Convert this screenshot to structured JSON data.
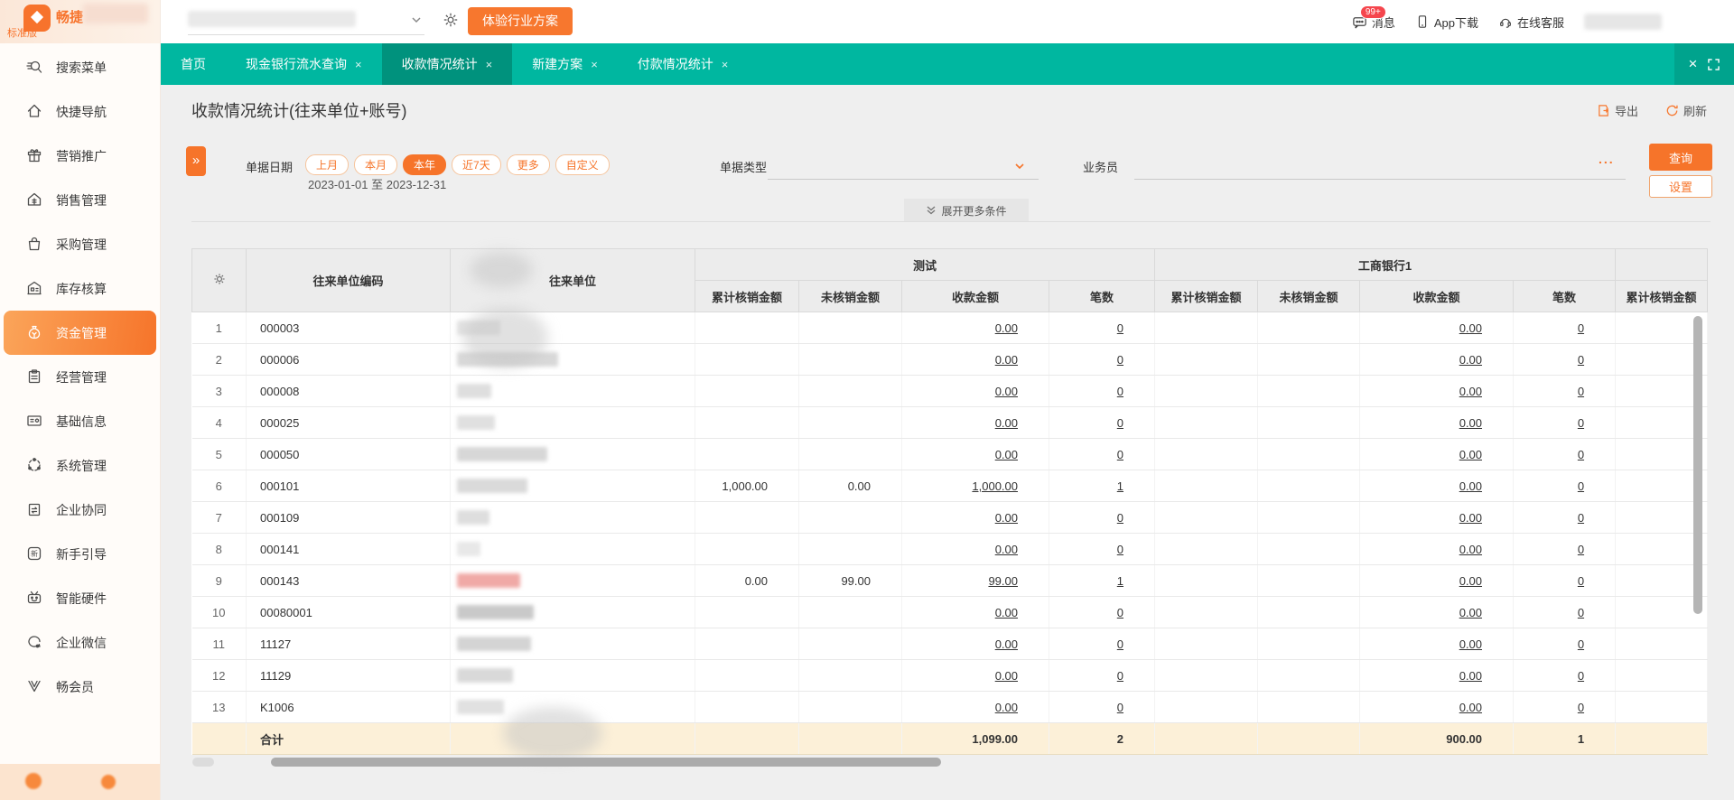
{
  "brand": {
    "name": "畅捷",
    "edition": "标准版"
  },
  "header": {
    "experience_btn": "体验行业方案",
    "messages_label": "消息",
    "messages_badge": "99+",
    "app_label": "App下载",
    "service_label": "在线客服"
  },
  "sidebar": {
    "items": [
      {
        "label": "搜索菜单",
        "icon": "search-icon",
        "active": false
      },
      {
        "label": "快捷导航",
        "icon": "home-icon",
        "active": false
      },
      {
        "label": "营销推广",
        "icon": "gift-icon",
        "active": false
      },
      {
        "label": "销售管理",
        "icon": "sales-icon",
        "active": false
      },
      {
        "label": "采购管理",
        "icon": "purchase-bag-icon",
        "active": false
      },
      {
        "label": "库存核算",
        "icon": "warehouse-icon",
        "active": false
      },
      {
        "label": "资金管理",
        "icon": "money-bag-icon",
        "active": true
      },
      {
        "label": "经营管理",
        "icon": "clipboard-icon",
        "active": false
      },
      {
        "label": "基础信息",
        "icon": "id-card-icon",
        "active": false
      },
      {
        "label": "系统管理",
        "icon": "system-icon",
        "active": false
      },
      {
        "label": "企业协同",
        "icon": "collaboration-icon",
        "active": false
      },
      {
        "label": "新手引导",
        "icon": "newbie-icon",
        "active": false
      },
      {
        "label": "智能硬件",
        "icon": "hardware-icon",
        "active": false
      },
      {
        "label": "企业微信",
        "icon": "wechat-icon",
        "active": false
      },
      {
        "label": "畅会员",
        "icon": "member-icon",
        "active": false
      }
    ]
  },
  "tabs": [
    {
      "label": "首页",
      "closable": false,
      "active": false
    },
    {
      "label": "现金银行流水查询",
      "closable": true,
      "active": false
    },
    {
      "label": "收款情况统计",
      "closable": true,
      "active": true
    },
    {
      "label": "新建方案",
      "closable": true,
      "active": false
    },
    {
      "label": "付款情况统计",
      "closable": true,
      "active": false
    }
  ],
  "page": {
    "title": "收款情况统计(往来单位+账号)",
    "export_label": "导出",
    "refresh_label": "刷新"
  },
  "filters": {
    "date_label": "单据日期",
    "date_pills": [
      {
        "label": "上月",
        "active": false
      },
      {
        "label": "本月",
        "active": false
      },
      {
        "label": "本年",
        "active": true
      },
      {
        "label": "近7天",
        "active": false
      },
      {
        "label": "更多",
        "active": false
      },
      {
        "label": "自定义",
        "active": false
      }
    ],
    "date_range": "2023-01-01 至 2023-12-31",
    "doc_type_label": "单据类型",
    "salesman_label": "业务员",
    "more_dots": "...",
    "query_btn": "查询",
    "settings_btn": "设置",
    "expand_more": "展开更多条件"
  },
  "table": {
    "col_code": "往来单位编码",
    "col_partner": "往来单位",
    "group1": "测试",
    "group2": "工商银行1",
    "group3": "",
    "sub_cols": [
      "累计核销金额",
      "未核销金额",
      "收款金额",
      "笔数"
    ],
    "third_group_col": "累计核销金额",
    "rows": [
      {
        "no": "1",
        "code": "000003",
        "blur_w": 48,
        "blur_c": "#e4e4e4",
        "g1": [
          "",
          "",
          "0.00",
          "0"
        ],
        "g2": [
          "",
          "",
          "0.00",
          "0"
        ]
      },
      {
        "no": "2",
        "code": "000006",
        "blur_w": 112,
        "blur_c": "#d9d9d9",
        "g1": [
          "",
          "",
          "0.00",
          "0"
        ],
        "g2": [
          "",
          "",
          "0.00",
          "0"
        ]
      },
      {
        "no": "3",
        "code": "000008",
        "blur_w": 38,
        "blur_c": "#dedede",
        "g1": [
          "",
          "",
          "0.00",
          "0"
        ],
        "g2": [
          "",
          "",
          "0.00",
          "0"
        ]
      },
      {
        "no": "4",
        "code": "000025",
        "blur_w": 42,
        "blur_c": "#e0e0e0",
        "g1": [
          "",
          "",
          "0.00",
          "0"
        ],
        "g2": [
          "",
          "",
          "0.00",
          "0"
        ]
      },
      {
        "no": "5",
        "code": "000050",
        "blur_w": 100,
        "blur_c": "#d7d7d7",
        "g1": [
          "",
          "",
          "0.00",
          "0"
        ],
        "g2": [
          "",
          "",
          "0.00",
          "0"
        ]
      },
      {
        "no": "6",
        "code": "000101",
        "blur_w": 78,
        "blur_c": "#dadada",
        "g1": [
          "1,000.00",
          "0.00",
          "1,000.00",
          "1"
        ],
        "g2": [
          "",
          "",
          "0.00",
          "0"
        ]
      },
      {
        "no": "7",
        "code": "000109",
        "blur_w": 36,
        "blur_c": "#dedede",
        "g1": [
          "",
          "",
          "0.00",
          "0"
        ],
        "g2": [
          "",
          "",
          "0.00",
          "0"
        ]
      },
      {
        "no": "8",
        "code": "000141",
        "blur_w": 26,
        "blur_c": "#e8e8e8",
        "g1": [
          "",
          "",
          "0.00",
          "0"
        ],
        "g2": [
          "",
          "",
          "0.00",
          "0"
        ]
      },
      {
        "no": "9",
        "code": "000143",
        "blur_w": 70,
        "blur_c": "#f0a9a6",
        "g1": [
          "0.00",
          "99.00",
          "99.00",
          "1"
        ],
        "g2": [
          "",
          "",
          "0.00",
          "0"
        ]
      },
      {
        "no": "10",
        "code": "00080001",
        "blur_w": 85,
        "blur_c": "#c9c9c9",
        "g1": [
          "",
          "",
          "0.00",
          "0"
        ],
        "g2": [
          "",
          "",
          "0.00",
          "0"
        ]
      },
      {
        "no": "11",
        "code": "11127",
        "blur_w": 82,
        "blur_c": "#d4d4d4",
        "g1": [
          "",
          "",
          "0.00",
          "0"
        ],
        "g2": [
          "",
          "",
          "0.00",
          "0"
        ]
      },
      {
        "no": "12",
        "code": "11129",
        "blur_w": 62,
        "blur_c": "#d9d9d9",
        "g1": [
          "",
          "",
          "0.00",
          "0"
        ],
        "g2": [
          "",
          "",
          "0.00",
          "0"
        ]
      },
      {
        "no": "13",
        "code": "K1006",
        "blur_w": 52,
        "blur_c": "#e1e1e1",
        "g1": [
          "",
          "",
          "0.00",
          "0"
        ],
        "g2": [
          "",
          "",
          "0.00",
          "0"
        ]
      }
    ],
    "total": {
      "label": "合计",
      "g1": [
        "",
        "",
        "1,099.00",
        "2"
      ],
      "g2": [
        "",
        "",
        "900.00",
        "1"
      ]
    }
  },
  "colors": {
    "accent_orange": "#f6742a",
    "teal": "#00b7a0",
    "teal_active_tab": "#00927d",
    "total_row_bg": "#fcf0d8",
    "badge_red": "#f5464d"
  }
}
